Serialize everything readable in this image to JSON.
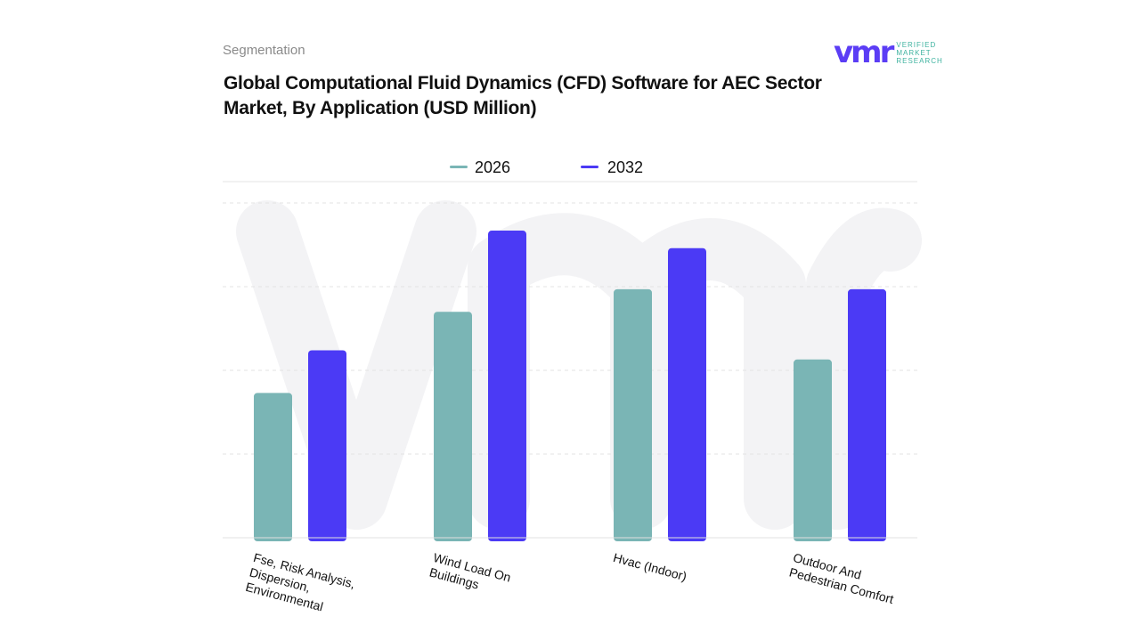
{
  "header": {
    "segment_label": "Segmentation",
    "title": "Global Computational Fluid Dynamics (CFD) Software for AEC Sector Market, By Application (USD Million)"
  },
  "logo": {
    "mark": "vmr",
    "text": [
      "VERIFIED",
      "MARKET",
      "RESEARCH"
    ]
  },
  "chart_data": {
    "type": "bar",
    "title": "Global Computational Fluid Dynamics (CFD) Software for AEC Sector Market, By Application (USD Million)",
    "categories": [
      "Fse, Risk Analysis, Dispersion, Environmental",
      "Wind Load On Buildings",
      "Hvac (Indoor)",
      "Outdoor And Pedestrian Comfort"
    ],
    "series": [
      {
        "name": "2026",
        "color": "#7ab5b5",
        "values": [
          1.73,
          2.7,
          2.97,
          2.13
        ]
      },
      {
        "name": "2032",
        "color": "#4b3af5",
        "values": [
          2.24,
          3.67,
          3.46,
          2.97
        ]
      }
    ],
    "ylim": [
      0,
      4
    ],
    "grid": true,
    "legend": "top",
    "y_tick_labels_shown": false
  }
}
